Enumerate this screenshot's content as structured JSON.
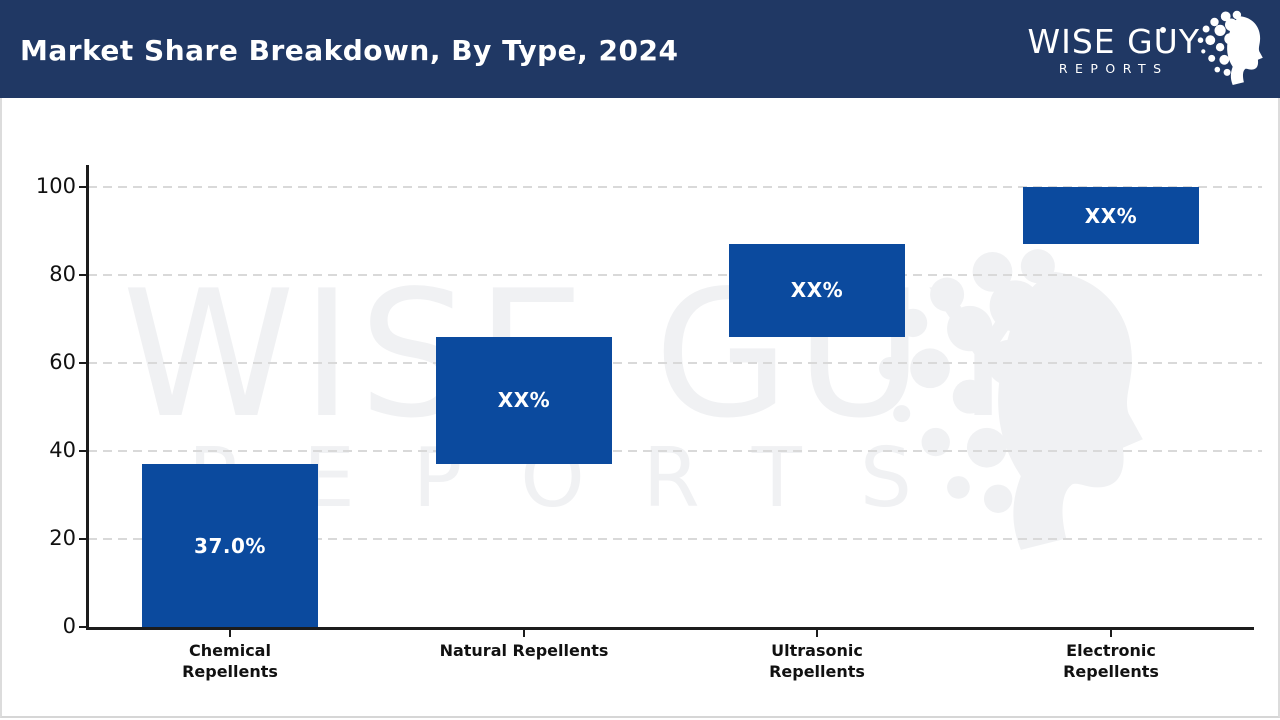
{
  "header": {
    "title": "Market Share Breakdown, By Type, 2024",
    "logo": {
      "brand": "WISE GUY",
      "sub": "REPORTS"
    }
  },
  "watermark": {
    "brand": "WISE GUY",
    "sub": "REPORTS"
  },
  "chart_data": {
    "type": "bar",
    "subtype": "waterfall",
    "title": "Market Share Breakdown, By Type, 2024",
    "categories": [
      "Chemical Repellents",
      "Natural Repellents",
      "Ultrasonic Repellents",
      "Electronic Repellents"
    ],
    "category_label_lines": [
      [
        "Chemical",
        "Repellents"
      ],
      [
        "Natural Repellents"
      ],
      [
        "Ultrasonic",
        "Repellents"
      ],
      [
        "Electronic",
        "Repellents"
      ]
    ],
    "segments": [
      {
        "category": "Chemical Repellents",
        "start": 0,
        "end": 37,
        "label": "37.0%"
      },
      {
        "category": "Natural Repellents",
        "start": 37,
        "end": 66,
        "label": "XX%"
      },
      {
        "category": "Ultrasonic Repellents",
        "start": 66,
        "end": 87,
        "label": "XX%"
      },
      {
        "category": "Electronic Repellents",
        "start": 87,
        "end": 100,
        "label": "XX%"
      }
    ],
    "ylim": [
      0,
      100
    ],
    "yticks": [
      0,
      20,
      40,
      60,
      80,
      100
    ],
    "xlabel": "",
    "ylabel": "",
    "grid": "horizontal-dashed",
    "legend": "none",
    "colors": {
      "bar": "#0b4a9e",
      "bar_label": "#ffffff",
      "axis": "#1c1c1c",
      "grid": "#d9d9d9",
      "header_bg": "#203864",
      "watermark": "#f0f1f3"
    }
  }
}
